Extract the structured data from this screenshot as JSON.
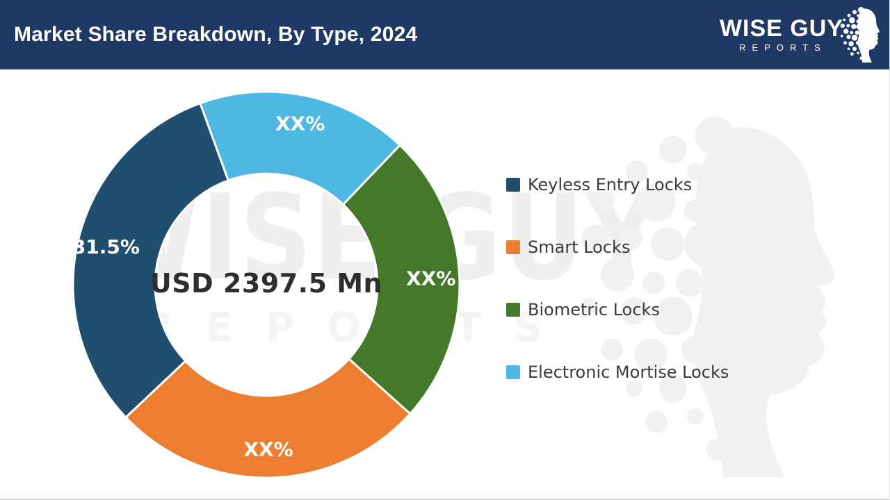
{
  "header": {
    "title": "Market Share Breakdown, By Type, 2024",
    "logo": {
      "line1": "WISE GUY",
      "line2": "REPORTS"
    }
  },
  "watermark": {
    "line1": "WISE GUY",
    "line2": "REPORTS"
  },
  "colors": {
    "header_bg": "#1f3864",
    "center_text": "#2e2e2e",
    "legend_text": "#3a3a3a",
    "slice_label": "#ffffff",
    "watermark": "#efefef",
    "watermark2": "#f4f4f4",
    "border": "#d8d8d8"
  },
  "chart_data": {
    "type": "pie",
    "subtype": "donut",
    "title": "Market Share Breakdown, By Type, 2024",
    "center_label": "USD 2397.5 Mn",
    "start_angle_deg": 110,
    "direction": "counterclockwise",
    "inner_radius_ratio": 0.575,
    "legend_position": "right",
    "series": [
      {
        "name": "Keyless Entry Locks",
        "value": 31.5,
        "label": "31.5%",
        "color": "#1f4e6e"
      },
      {
        "name": "Smart Locks",
        "value": 26.3,
        "label": "XX%",
        "color": "#ed7d31"
      },
      {
        "name": "Biometric Locks",
        "value": 24.5,
        "label": "XX%",
        "color": "#44782b"
      },
      {
        "name": "Electronic Mortise Locks",
        "value": 17.7,
        "label": "XX%",
        "color": "#4eb8e2"
      }
    ]
  }
}
